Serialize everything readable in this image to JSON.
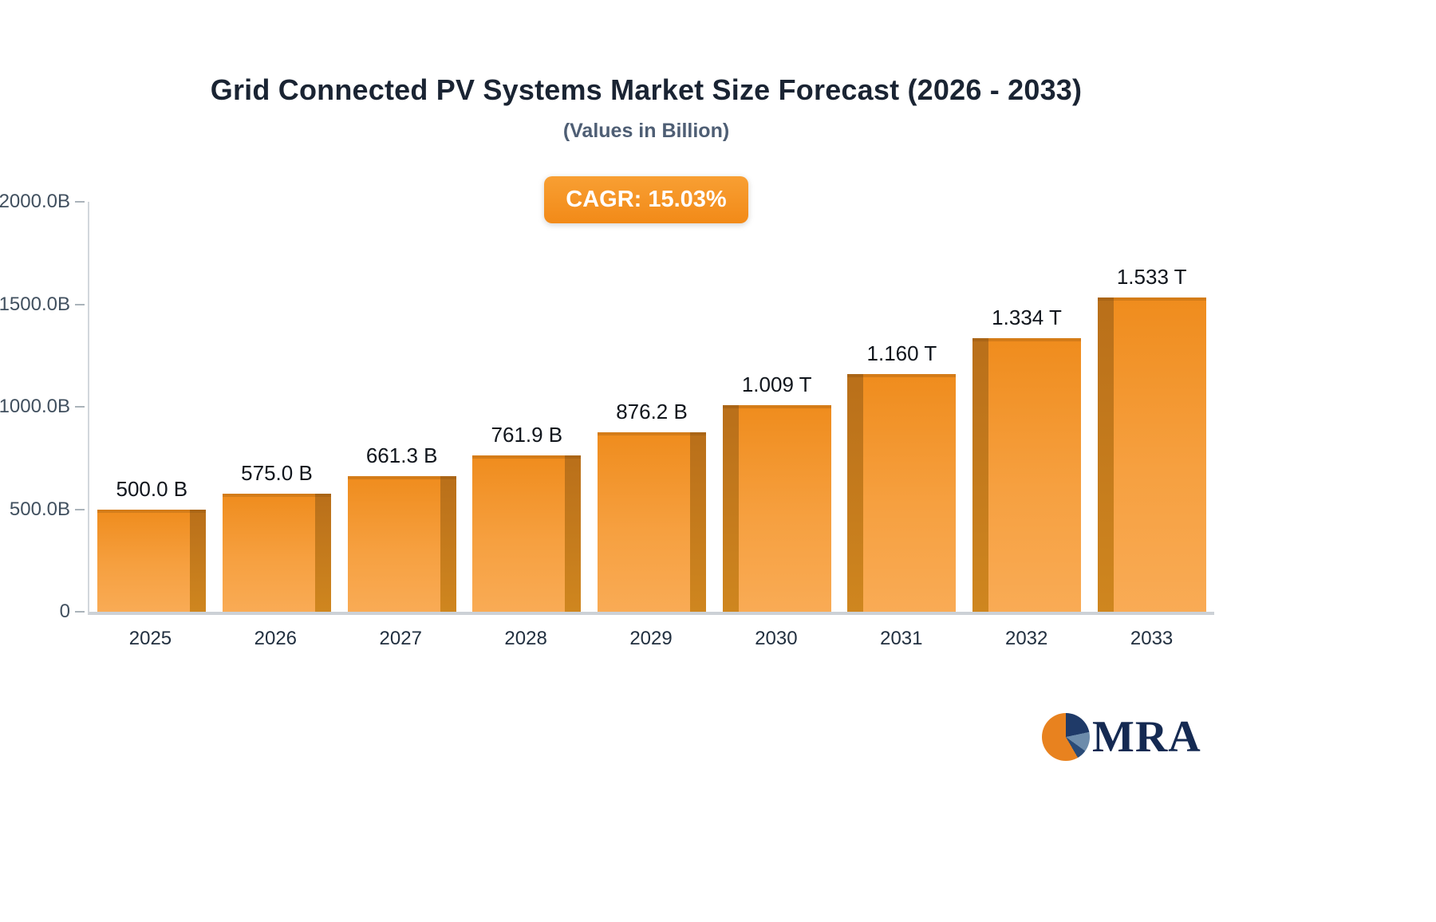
{
  "chart_data": {
    "type": "bar",
    "title": "Grid Connected PV Systems Market Size Forecast (2026 - 2033)",
    "subtitle": "(Values in Billion)",
    "annotation": "CAGR: 15.03%",
    "categories": [
      "2025",
      "2026",
      "2027",
      "2028",
      "2029",
      "2030",
      "2031",
      "2032",
      "2033"
    ],
    "values": [
      500.0,
      575.0,
      661.3,
      761.9,
      876.2,
      1009,
      1160,
      1334,
      1533
    ],
    "value_labels": [
      "500.0 B",
      "575.0 B",
      "661.3 B",
      "761.9 B",
      "876.2 B",
      "1.009 T",
      "1.160 T",
      "1.334 T",
      "1.533 T"
    ],
    "xlabel": "",
    "ylabel": "",
    "ylim": [
      0,
      2000
    ],
    "yticks": [
      {
        "label": "2000.0B",
        "value": 2000
      },
      {
        "label": "1500.0B",
        "value": 1500
      },
      {
        "label": "1000.0B",
        "value": 1000
      },
      {
        "label": "500.0B",
        "value": 500
      },
      {
        "label": "0",
        "value": 0
      }
    ],
    "grid": false,
    "legend": false,
    "colors": {
      "bar_front": "#F59A3C",
      "bar_side": "#C0761F",
      "badge_orange": "#F28A18",
      "title_navy": "#1A2433",
      "axis_gray": "#CCD1D6"
    }
  },
  "footer": {
    "logo_text": "MRA"
  }
}
